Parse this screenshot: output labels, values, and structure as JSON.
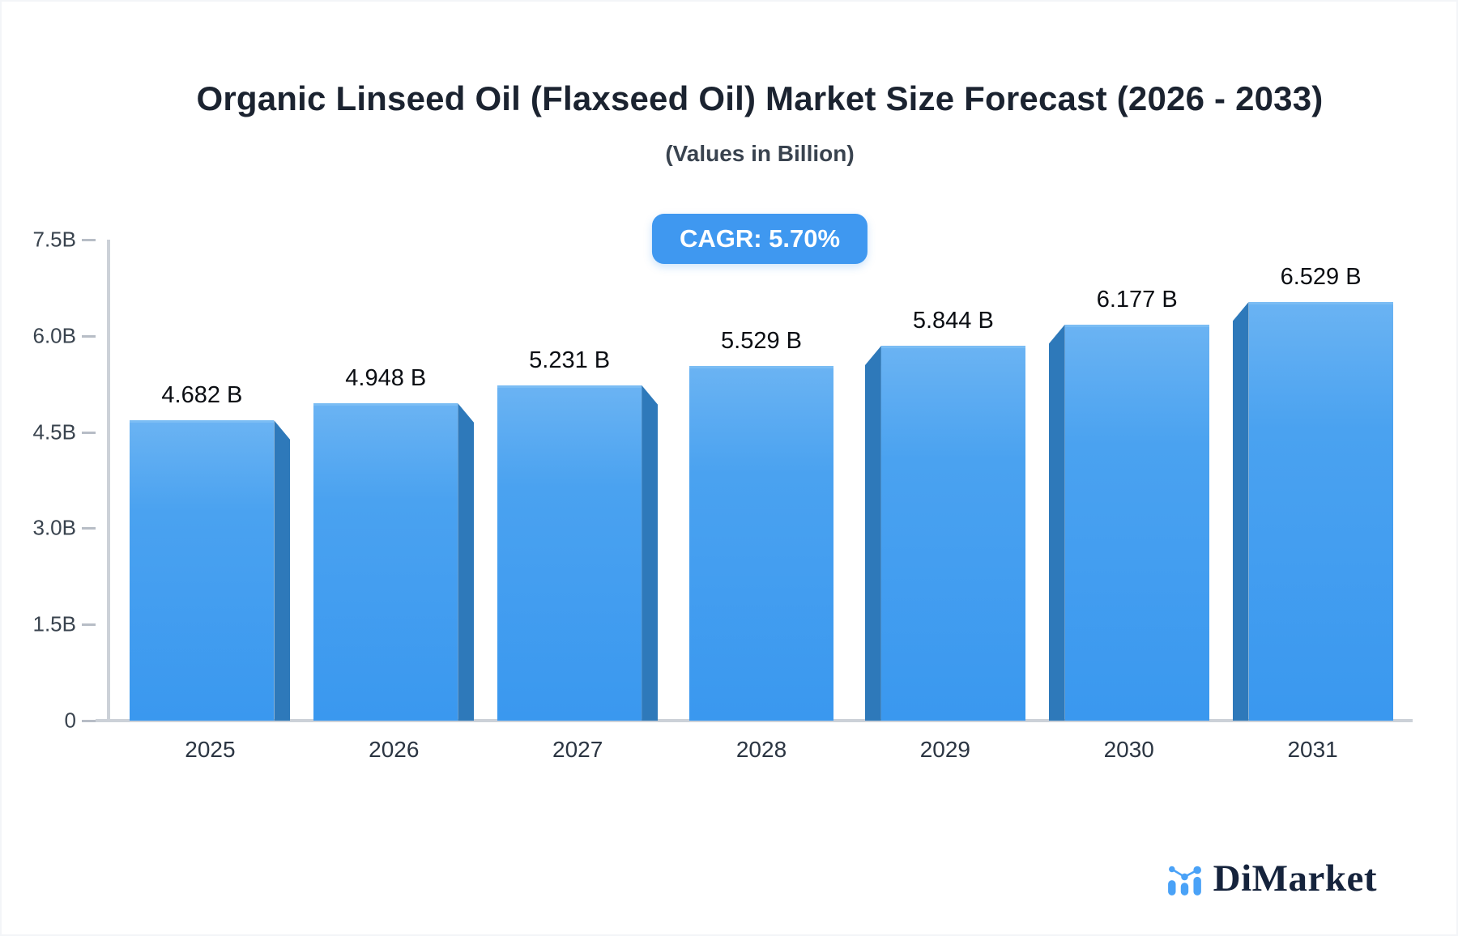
{
  "page": {
    "title": "Organic Linseed Oil (Flaxseed Oil) Market Size Forecast (2026 - 2033)",
    "subtitle": "(Values in Billion)",
    "cagr_badge": "CAGR: 5.70%",
    "brand": {
      "name": "DiMarket",
      "icon": "bar-line-chart-icon"
    }
  },
  "colors": {
    "bar_front": "#3a98ef",
    "bar_front_highlight": "#6ab3f3",
    "bar_side": "#2e79ba",
    "badge_bg": "#3f98f0",
    "axis_line": "#ccd1d8",
    "tick_dash": "#b7bdc6",
    "axis_text": "#39434e",
    "value_text": "#0b0e13",
    "brand_text": "#15233c",
    "brand_icon": "#4aa2f7"
  },
  "chart_data": {
    "type": "bar",
    "title": "Organic Linseed Oil (Flaxseed Oil) Market Size Forecast (2026 - 2033)",
    "subtitle": "(Values in Billion)",
    "annotation": "CAGR: 5.70%",
    "categories": [
      "2025",
      "2026",
      "2027",
      "2028",
      "2029",
      "2030",
      "2031"
    ],
    "values": [
      4.682,
      4.948,
      5.231,
      5.529,
      5.844,
      6.177,
      6.529
    ],
    "bar_labels": [
      "4.682 B",
      "4.948 B",
      "5.231 B",
      "5.529 B",
      "5.844 B",
      "6.177 B",
      "6.529 B"
    ],
    "xlabel": "",
    "ylabel": "",
    "ylim": [
      0,
      7.5
    ],
    "yticks": [
      {
        "value": 7.5,
        "label": "7.5B"
      },
      {
        "value": 6.0,
        "label": "6.0B"
      },
      {
        "value": 4.5,
        "label": "4.5B"
      },
      {
        "value": 3.0,
        "label": "3.0B"
      },
      {
        "value": 1.5,
        "label": "1.5B"
      },
      {
        "value": 0,
        "label": "0"
      }
    ],
    "grid": "off",
    "legend": "none",
    "style": "3d-extruded-bars, perspective vanishing point at center"
  }
}
